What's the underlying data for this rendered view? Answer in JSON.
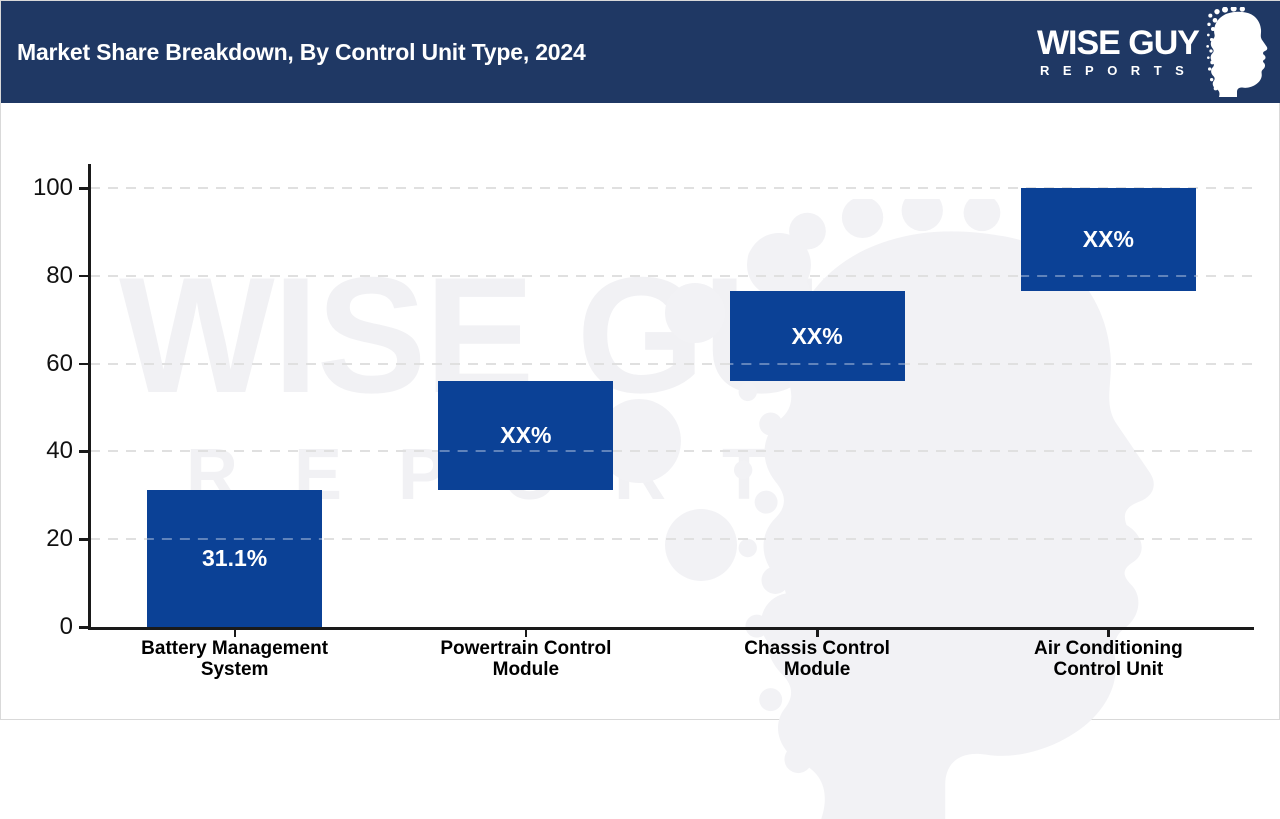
{
  "page": {
    "background": "#ffffff",
    "border_color": "#d9d9d9"
  },
  "header": {
    "title": "Market Share Breakdown, By Control Unit Type, 2024",
    "background": "#1f3864",
    "text_color": "#ffffff"
  },
  "brand": {
    "name": "WISE GUY",
    "subtitle": "REPORTS"
  },
  "watermark": {
    "line1": "WISE GUY",
    "line2": "REPORTS",
    "color": "#f1f1f4"
  },
  "chart_data": {
    "type": "bar",
    "subtype": "waterfall",
    "title": "Market Share Breakdown, By Control Unit Type, 2024",
    "categories": [
      "Battery Management System",
      "Powertrain Control Module",
      "Chassis Control Module",
      "Air Conditioning Control Unit"
    ],
    "category_lines": [
      [
        "Battery Management",
        "System"
      ],
      [
        "Powertrain Control",
        "Module"
      ],
      [
        "Chassis Control",
        "Module"
      ],
      [
        "Air Conditioning",
        "Control Unit"
      ]
    ],
    "segments": [
      {
        "category": "Battery Management System",
        "start": 0,
        "end": 31.1,
        "label": "31.1%"
      },
      {
        "category": "Powertrain Control Module",
        "start": 31.1,
        "end": 56,
        "label": "XX%"
      },
      {
        "category": "Chassis Control Module",
        "start": 56,
        "end": 76.5,
        "label": "XX%"
      },
      {
        "category": "Air Conditioning Control Unit",
        "start": 76.5,
        "end": 100,
        "label": "XX%"
      }
    ],
    "xlabel": "",
    "ylabel": "",
    "ylim": [
      0,
      100
    ],
    "yticks": [
      0,
      20,
      40,
      60,
      80,
      100
    ],
    "grid": "horizontal dashed",
    "legend": false,
    "bar_color": "#0b4196",
    "bar_label_color": "#ffffff",
    "axis_color": "#1a1a1a",
    "grid_color": "#e0e0e0",
    "tick_label_color": "#111111"
  }
}
